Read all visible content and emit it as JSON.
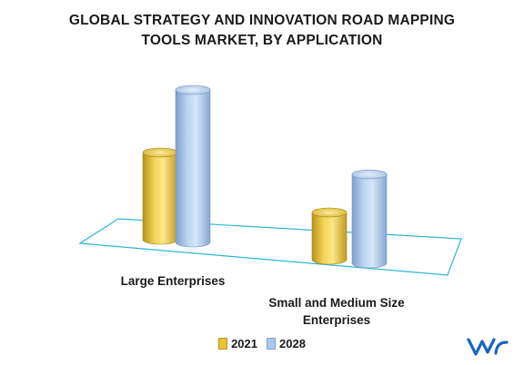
{
  "title": {
    "line1": "GLOBAL STRATEGY AND INNOVATION ROAD MAPPING",
    "line2": "TOOLS MARKET, BY APPLICATION"
  },
  "chart_data": {
    "type": "bar",
    "title": "GLOBAL STRATEGY AND INNOVATION ROAD MAPPING TOOLS MARKET, BY APPLICATION",
    "categories": [
      "Large Enterprises",
      "Small and Medium Size Enterprises"
    ],
    "series": [
      {
        "name": "2021",
        "values": [
          48,
          26
        ],
        "color": "#E8C33A"
      },
      {
        "name": "2028",
        "values": [
          84,
          49
        ],
        "color": "#A9C8EE"
      }
    ],
    "xlabel": "",
    "ylabel": "",
    "grid": false,
    "legend_position": "bottom"
  },
  "category_labels": {
    "c0": "Large Enterprises",
    "c1_line1": "Small and Medium Size",
    "c1_line2": "Enterprises"
  },
  "legend": {
    "s0": "2021",
    "s1": "2028"
  },
  "brand": {
    "logo_icon": "vmr-logo-icon",
    "color": "#1565c0"
  }
}
